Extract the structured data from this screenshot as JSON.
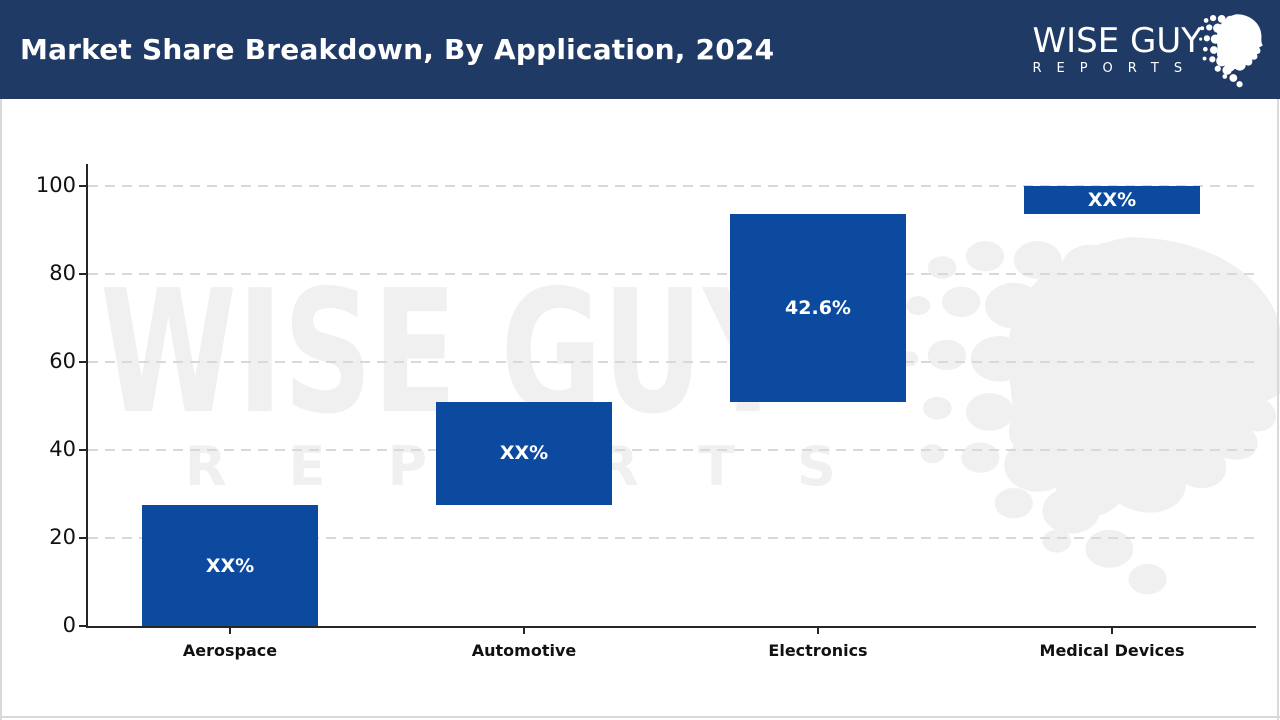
{
  "header": {
    "title": "Market Share Breakdown, By Application, 2024",
    "logo": {
      "line1": "WISE GUY",
      "line2": "REPORTS"
    }
  },
  "watermark": {
    "line1": "WISE GUY",
    "line2": "REPORTS"
  },
  "colors": {
    "header_bg": "#203a66",
    "bar": "#0b4a9e",
    "grid": "#d9d9d9",
    "axis": "#262626",
    "tick_text": "#111111",
    "bar_label_text": "#ffffff",
    "watermark": "#f0f0f0"
  },
  "chart_data": {
    "type": "bar",
    "subtype": "waterfall",
    "title": "Market Share Breakdown, By Application, 2024",
    "xlabel": "",
    "ylabel": "",
    "categories": [
      "Aerospace",
      "Automotive",
      "Electronics",
      "Medical Devices"
    ],
    "segments": [
      {
        "category": "Aerospace",
        "start": 0,
        "end": 27.5,
        "label": "XX%"
      },
      {
        "category": "Automotive",
        "start": 27.5,
        "end": 51.0,
        "label": "XX%"
      },
      {
        "category": "Electronics",
        "start": 51.0,
        "end": 93.6,
        "label": "42.6%"
      },
      {
        "category": "Medical Devices",
        "start": 93.6,
        "end": 100,
        "label": "XX%"
      }
    ],
    "yticks": [
      0,
      20,
      40,
      60,
      80,
      100
    ],
    "ylim": [
      0,
      105
    ],
    "grid": "dashed-horizontal",
    "legend": "none",
    "bar_color": "#0b4a9e"
  }
}
